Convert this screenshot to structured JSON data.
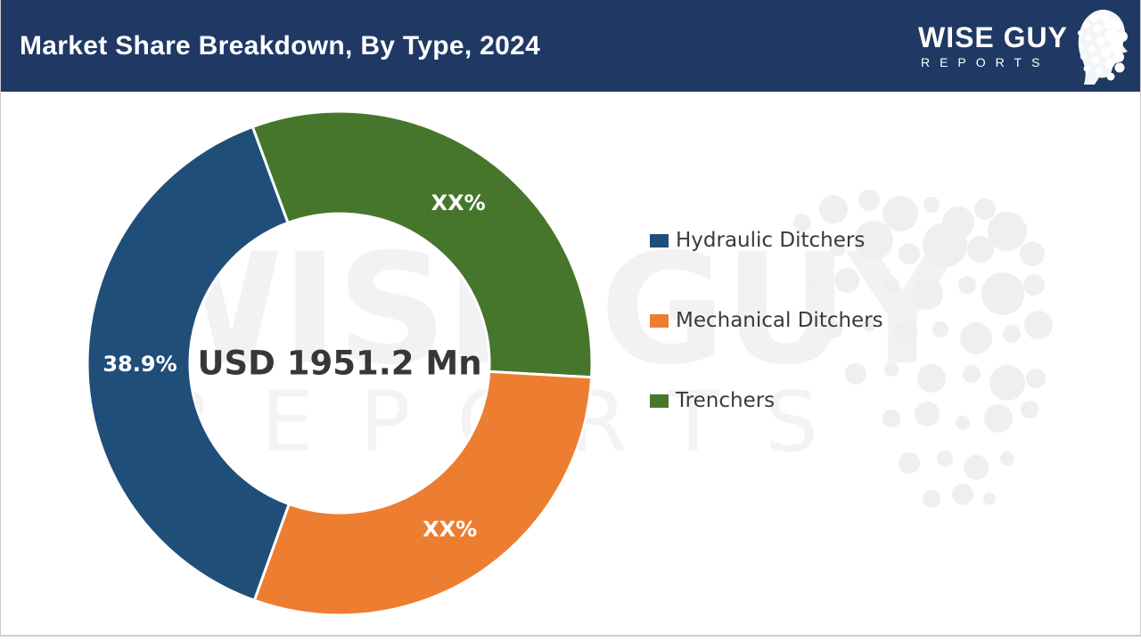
{
  "header": {
    "title": "Market Share Breakdown, By Type, 2024",
    "bg_color": "#203864",
    "logo": {
      "line1": "WISE GUY",
      "line2": "REPORTS"
    }
  },
  "watermark": {
    "line1": "WISE GUY",
    "line2": "REPORTS"
  },
  "chart_data": {
    "type": "pie",
    "subtype": "donut",
    "title": "Market Share Breakdown, By Type, 2024",
    "center_label": "USD 1951.2 Mn",
    "rotation_deg": -20.2,
    "slices": [
      {
        "name": "Trenchers",
        "share_pct_est": 31.5,
        "display_label": "XX%",
        "color": "#46762B"
      },
      {
        "name": "Mechanical Ditchers",
        "share_pct_est": 29.6,
        "display_label": "XX%",
        "color": "#ED7D31"
      },
      {
        "name": "Hydraulic Ditchers",
        "share_pct_est": 38.9,
        "display_label": "38.9%",
        "color": "#1F4E79"
      }
    ],
    "legend": [
      {
        "label": "Hydraulic Ditchers",
        "color": "#1F4E79"
      },
      {
        "label": "Mechanical Ditchers",
        "color": "#ED7D31"
      },
      {
        "label": "Trenchers",
        "color": "#46762B"
      }
    ],
    "legend_position": "right",
    "colors": {
      "center_text": "#373737",
      "label_text": "#ffffff",
      "legend_text": "#3a3a3a"
    }
  }
}
